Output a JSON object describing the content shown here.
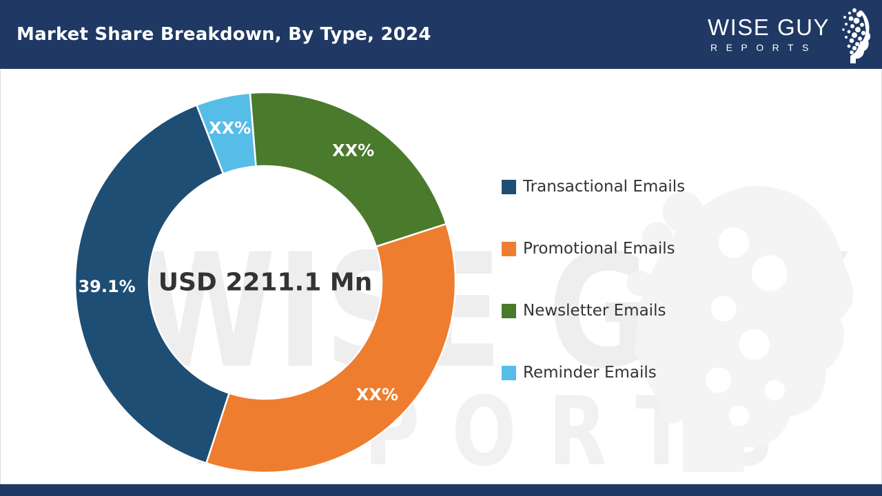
{
  "header": {
    "title": "Market Share Breakdown, By Type, 2024",
    "bg_color": "#1f3864",
    "logo": {
      "line1": "WISE GUY",
      "line2": "REPORTS"
    }
  },
  "watermark": {
    "line1": "WISE GUY",
    "line2": "REPORTS"
  },
  "chart_data": {
    "type": "pie",
    "subtype": "donut",
    "title": "Market Share Breakdown, By Type, 2024",
    "center_label": "USD 2211.1 Mn",
    "start_angle_deg": -4.6,
    "slices": [
      {
        "name": "Newsletter Emails",
        "label": "XX%",
        "value_pct": 21.3,
        "color": "#4a7a2c"
      },
      {
        "name": "Promotional Emails",
        "label": "XX%",
        "value_pct": 35.0,
        "color": "#ee7d2f"
      },
      {
        "name": "Transactional Emails",
        "label": "39.1%",
        "value_pct": 39.1,
        "color": "#1f4e74"
      },
      {
        "name": "Reminder Emails",
        "label": "XX%",
        "value_pct": 4.6,
        "color": "#56bde8"
      }
    ],
    "legend": [
      {
        "label": "Transactional Emails",
        "color": "#1f4e74"
      },
      {
        "label": "Promotional Emails",
        "color": "#ee7d2f"
      },
      {
        "label": "Newsletter Emails",
        "color": "#4a7a2c"
      },
      {
        "label": "Reminder Emails",
        "color": "#56bde8"
      }
    ],
    "legend_position": "right"
  }
}
